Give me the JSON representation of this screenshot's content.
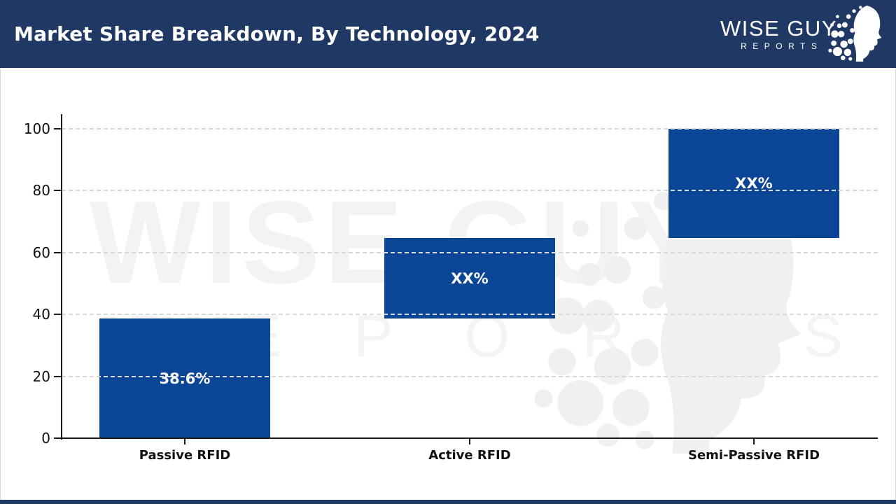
{
  "header": {
    "title": "Market Share Breakdown, By Technology, 2024",
    "logo": {
      "line1": "WISE GUY",
      "line2": "REPORTS"
    }
  },
  "watermark": {
    "line1": "WISE GUY",
    "line2": "R E P O R T S"
  },
  "colors": {
    "header_bg": "#203864",
    "footer_bg": "#203864",
    "bar": "#0b4596",
    "bar_label": "#ffffff",
    "gridline": "#d9d9d9",
    "axis": "#1a1a1a",
    "watermark": "#f3f3f3"
  },
  "chart_data": {
    "type": "bar",
    "subtype": "floating-segment (waterfall-style market share)",
    "title": "Market Share Breakdown, By Technology, 2024",
    "xlabel": "",
    "ylabel": "",
    "categories": [
      "Passive RFID",
      "Active RFID",
      "Semi-Passive RFID"
    ],
    "bars": [
      {
        "category": "Passive RFID",
        "start": 0,
        "end": 38.6,
        "label": "38.6%"
      },
      {
        "category": "Active RFID",
        "start": 38.6,
        "end": 64.7,
        "label": "XX%"
      },
      {
        "category": "Semi-Passive RFID",
        "start": 64.7,
        "end": 100,
        "label": "XX%"
      }
    ],
    "y_ticks": [
      0,
      20,
      40,
      60,
      80,
      100
    ],
    "ylim": [
      0,
      104.5
    ],
    "grid": "horizontal dashed",
    "legend": "none"
  }
}
